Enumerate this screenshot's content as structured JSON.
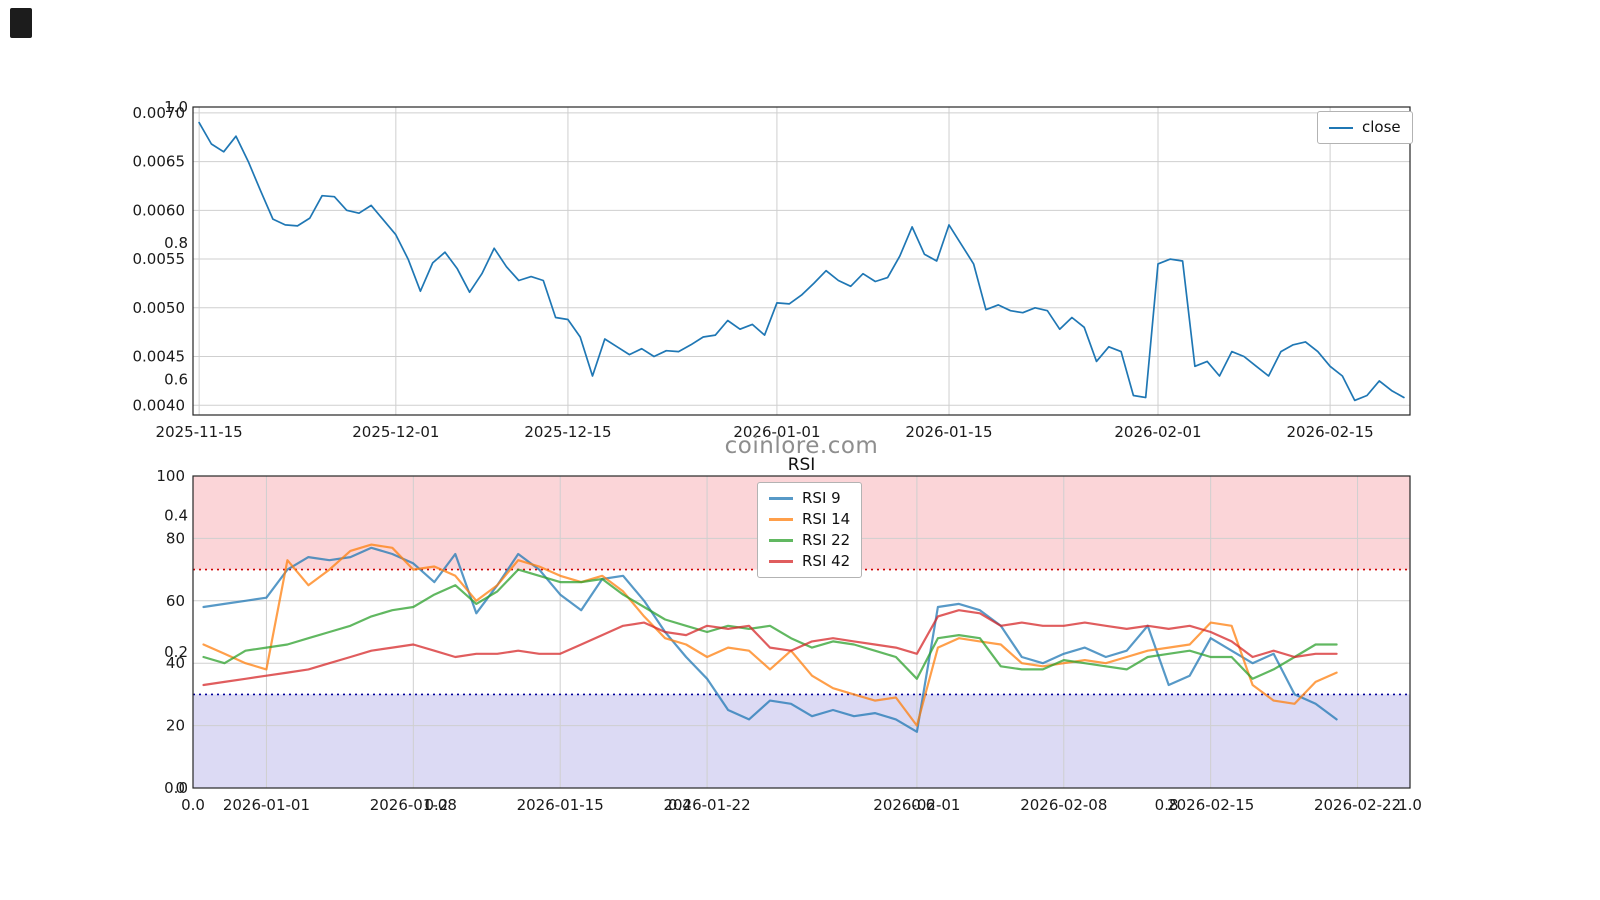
{
  "watermark": "coinlore.com",
  "overlay_axis": {
    "xticks": [
      "0.0",
      "0.2",
      "0.4",
      "0.6",
      "0.8",
      "1.0"
    ],
    "yticks": [
      "1.0",
      "0.8",
      "0.6",
      "0.4",
      "0.2",
      "0.0"
    ]
  },
  "chart_data": [
    {
      "type": "line",
      "name": "price",
      "x_start": "2025-11-15",
      "x_freq": "daily",
      "xticks": [
        "2025-11-15",
        "2025-12-01",
        "2025-12-15",
        "2026-01-01",
        "2026-01-15",
        "2026-02-01",
        "2026-02-15"
      ],
      "yticks": [
        [
          0.004,
          "0.0040"
        ],
        [
          0.0045,
          "0.0045"
        ],
        [
          0.005,
          "0.0050"
        ],
        [
          0.0055,
          "0.0055"
        ],
        [
          0.006,
          "0.0060"
        ],
        [
          0.0065,
          "0.0065"
        ],
        [
          0.007,
          "0.0070"
        ]
      ],
      "xlim": [
        -0.5,
        98.5
      ],
      "ylim": [
        0.0039,
        0.00706
      ],
      "grid": true,
      "legend_position": "upper right",
      "series": [
        {
          "name": "close",
          "color": "#1f77b4",
          "opacity": 1,
          "values": [
            0.0069,
            0.00668,
            0.0066,
            0.00676,
            0.0065,
            0.0062,
            0.00591,
            0.00585,
            0.00584,
            0.00592,
            0.00615,
            0.00614,
            0.006,
            0.00597,
            0.00605,
            0.0059,
            0.00575,
            0.0055,
            0.00517,
            0.00546,
            0.00557,
            0.0054,
            0.00516,
            0.00535,
            0.00561,
            0.00542,
            0.00528,
            0.00532,
            0.00528,
            0.0049,
            0.00488,
            0.0047,
            0.0043,
            0.00468,
            0.0046,
            0.00452,
            0.00458,
            0.0045,
            0.00456,
            0.00455,
            0.00462,
            0.0047,
            0.00472,
            0.00487,
            0.00478,
            0.00483,
            0.00472,
            0.00505,
            0.00504,
            0.00513,
            0.00525,
            0.00538,
            0.00528,
            0.00522,
            0.00535,
            0.00527,
            0.00531,
            0.00553,
            0.00583,
            0.00555,
            0.00548,
            0.00585,
            0.00565,
            0.00545,
            0.00498,
            0.00503,
            0.00497,
            0.00495,
            0.005,
            0.00497,
            0.00478,
            0.0049,
            0.0048,
            0.00445,
            0.0046,
            0.00455,
            0.0041,
            0.00408,
            0.00545,
            0.0055,
            0.00548,
            0.0044,
            0.00445,
            0.0043,
            0.00455,
            0.0045,
            0.0044,
            0.0043,
            0.00455,
            0.00462,
            0.00465,
            0.00455,
            0.0044,
            0.0043,
            0.00405,
            0.0041,
            0.00425,
            0.00415,
            0.00408
          ]
        }
      ]
    },
    {
      "type": "line",
      "name": "rsi",
      "title": "RSI",
      "x_start": "2025-12-29",
      "x_freq": "daily",
      "xticks": [
        "2026-01-01",
        "2026-01-08",
        "2026-01-15",
        "2026-01-22",
        "2026-02-01",
        "2026-02-08",
        "2026-02-15",
        "2026-02-22"
      ],
      "yticks": [
        [
          0,
          "0"
        ],
        [
          20,
          "20"
        ],
        [
          40,
          "40"
        ],
        [
          60,
          "60"
        ],
        [
          80,
          "80"
        ],
        [
          100,
          "100"
        ]
      ],
      "xlim": [
        -0.5,
        57.5
      ],
      "ylim": [
        0,
        100
      ],
      "grid": true,
      "legend_position": "upper center",
      "bands": [
        {
          "name": "overbought-band",
          "from": 70,
          "to": 100,
          "color": "#fbd5d8"
        },
        {
          "name": "oversold-band",
          "from": 0,
          "to": 30,
          "color": "#dcdaf4"
        }
      ],
      "hlines": [
        {
          "name": "overbought-line",
          "value": 70,
          "color": "#cc0000"
        },
        {
          "name": "oversold-line",
          "value": 30,
          "color": "#000099"
        }
      ],
      "series": [
        {
          "name": "RSI 9",
          "color": "#1f77b4",
          "opacity": 0.75,
          "values": [
            58,
            59,
            60,
            61,
            70,
            74,
            73,
            74,
            77,
            75,
            72,
            66,
            75,
            56,
            65,
            75,
            70,
            62,
            57,
            67,
            68,
            60,
            50,
            42,
            35,
            25,
            22,
            28,
            27,
            23,
            25,
            23,
            24,
            22,
            18,
            58,
            59,
            57,
            52,
            42,
            40,
            43,
            45,
            42,
            44,
            52,
            33,
            36,
            48,
            44,
            40,
            43,
            30,
            27,
            22
          ]
        },
        {
          "name": "RSI 14",
          "color": "#ff7f0e",
          "opacity": 0.75,
          "values": [
            46,
            43,
            40,
            38,
            73,
            65,
            70,
            76,
            78,
            77,
            70,
            71,
            68,
            60,
            65,
            73,
            71,
            68,
            66,
            68,
            63,
            55,
            48,
            46,
            42,
            45,
            44,
            38,
            44,
            36,
            32,
            30,
            28,
            29,
            20,
            45,
            48,
            47,
            46,
            40,
            39,
            40,
            41,
            40,
            42,
            44,
            45,
            46,
            53,
            52,
            33,
            28,
            27,
            34,
            37
          ]
        },
        {
          "name": "RSI 22",
          "color": "#2ca02c",
          "opacity": 0.75,
          "values": [
            42,
            40,
            44,
            45,
            46,
            48,
            50,
            52,
            55,
            57,
            58,
            62,
            65,
            59,
            63,
            70,
            68,
            66,
            66,
            67,
            62,
            58,
            54,
            52,
            50,
            52,
            51,
            52,
            48,
            45,
            47,
            46,
            44,
            42,
            35,
            48,
            49,
            48,
            39,
            38,
            38,
            41,
            40,
            39,
            38,
            42,
            43,
            44,
            42,
            42,
            35,
            38,
            42,
            46,
            46
          ]
        },
        {
          "name": "RSI 42",
          "color": "#d62728",
          "opacity": 0.75,
          "values": [
            33,
            34,
            35,
            36,
            37,
            38,
            40,
            42,
            44,
            45,
            46,
            44,
            42,
            43,
            43,
            44,
            43,
            43,
            46,
            49,
            52,
            53,
            50,
            49,
            52,
            51,
            52,
            45,
            44,
            47,
            48,
            47,
            46,
            45,
            43,
            55,
            57,
            56,
            52,
            53,
            52,
            52,
            53,
            52,
            51,
            52,
            51,
            52,
            50,
            47,
            42,
            44,
            42,
            43,
            43
          ]
        }
      ]
    }
  ]
}
